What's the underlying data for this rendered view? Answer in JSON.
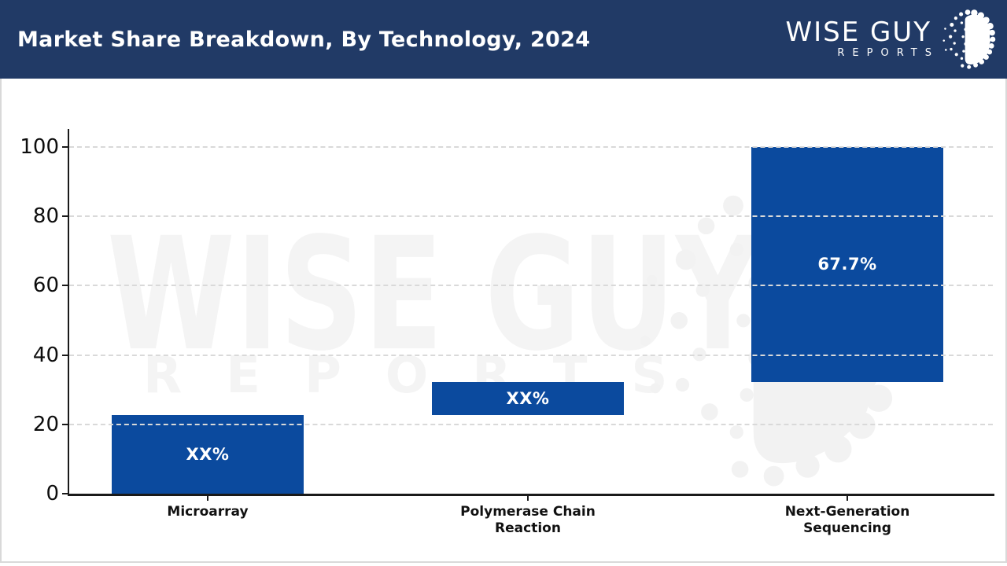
{
  "header": {
    "title": "Market Share Breakdown, By Technology, 2024",
    "logo": {
      "line1": "WISE GUY",
      "line2": "REPORTS"
    }
  },
  "watermark": {
    "line1": "WISE GUY",
    "line2": "REPORTS"
  },
  "chart_data": {
    "type": "bar",
    "subtype": "floating-waterfall-percent",
    "title": "Market Share Breakdown, By Technology, 2024",
    "categories": [
      "Microarray",
      "Polymerase Chain Reaction",
      "Next-Generation Sequencing"
    ],
    "bars": [
      {
        "category": "Microarray",
        "start": 0,
        "end": 22.6,
        "label": "XX%"
      },
      {
        "category": "Polymerase Chain Reaction",
        "start": 22.6,
        "end": 32.3,
        "label": "XX%"
      },
      {
        "category": "Next-Generation Sequencing",
        "start": 32.3,
        "end": 100,
        "label": "67.7%"
      }
    ],
    "xlabel": "",
    "ylabel": "",
    "ylim": [
      0,
      100
    ],
    "yticks": [
      0,
      20,
      40,
      60,
      80,
      100
    ],
    "grid": "dashed-horizontal-over-bars",
    "legend": "none",
    "bar_color": "#0b4a9e",
    "bar_label_color": "#ffffff"
  },
  "colors": {
    "header_bg": "#213a66",
    "bar_blue": "#0b4a9e",
    "page_bg": "#ffffff",
    "grid_gray": "#d9d9d9",
    "axis_dark": "#1a1a1a",
    "watermark_gray": "#f4f4f4",
    "border_gray": "#d9d9d9"
  }
}
